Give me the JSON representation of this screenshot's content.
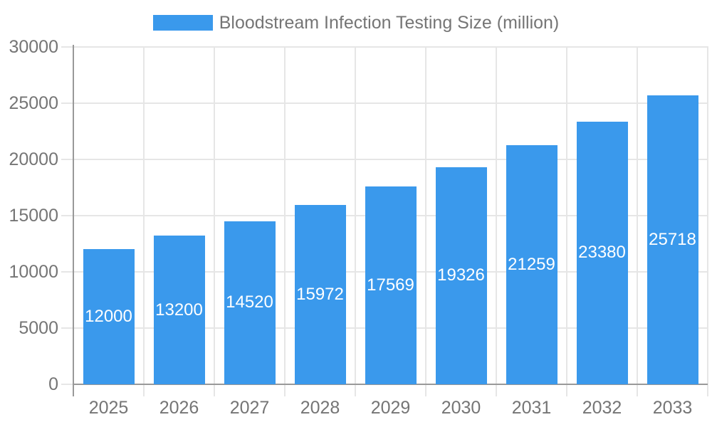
{
  "chart_data": {
    "type": "bar",
    "title": "Bloodstream Infection Testing Size (million)",
    "categories": [
      "2025",
      "2026",
      "2027",
      "2028",
      "2029",
      "2030",
      "2031",
      "2032",
      "2033"
    ],
    "values": [
      12000,
      13200,
      14520,
      15972,
      17569,
      19326,
      21259,
      23380,
      25718
    ],
    "series": [
      {
        "name": "Bloodstream Infection Testing Size (million)",
        "values": [
          12000,
          13200,
          14520,
          15972,
          17569,
          19326,
          21259,
          23380,
          25718
        ]
      }
    ],
    "xlabel": "",
    "ylabel": "",
    "ylim": [
      0,
      30000
    ],
    "yticks": [
      0,
      5000,
      10000,
      15000,
      20000,
      25000,
      30000
    ],
    "grid": true,
    "legend_position": "top",
    "colors": {
      "bar": "#3a99ec",
      "grid": "#e6e6e6",
      "axis": "#999999",
      "text": "#757575",
      "value_label": "#ffffff",
      "background": "#ffffff"
    }
  }
}
